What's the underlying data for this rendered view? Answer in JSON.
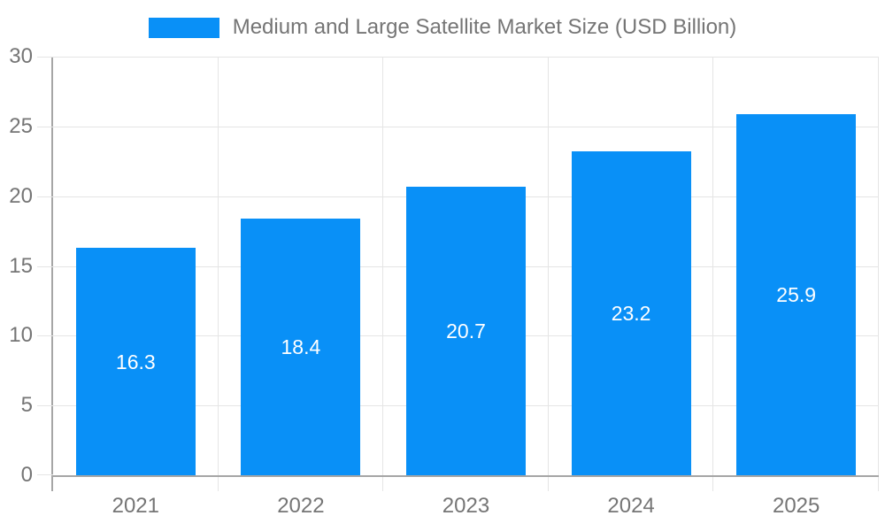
{
  "legend": {
    "label": "Medium and Large Satellite Market Size (USD Billion)"
  },
  "chart_data": {
    "type": "bar",
    "title": "Medium and Large Satellite Market Size (USD Billion)",
    "categories": [
      "2021",
      "2022",
      "2023",
      "2024",
      "2025"
    ],
    "values": [
      16.3,
      18.4,
      20.7,
      23.2,
      25.9
    ],
    "value_labels": [
      "16.3",
      "18.4",
      "20.7",
      "23.2",
      "25.9"
    ],
    "xlabel": "",
    "ylabel": "",
    "ylim": [
      0,
      30
    ],
    "yticks": [
      0,
      5,
      10,
      15,
      20,
      25,
      30
    ],
    "grid": true,
    "legend_position": "top",
    "colors": {
      "bar": "#0990F7",
      "value_label": "#ffffff",
      "axis_text": "#757575",
      "gridline": "#e5e5e5",
      "axis_line": "#a6a6a6",
      "background": "#ffffff"
    }
  }
}
